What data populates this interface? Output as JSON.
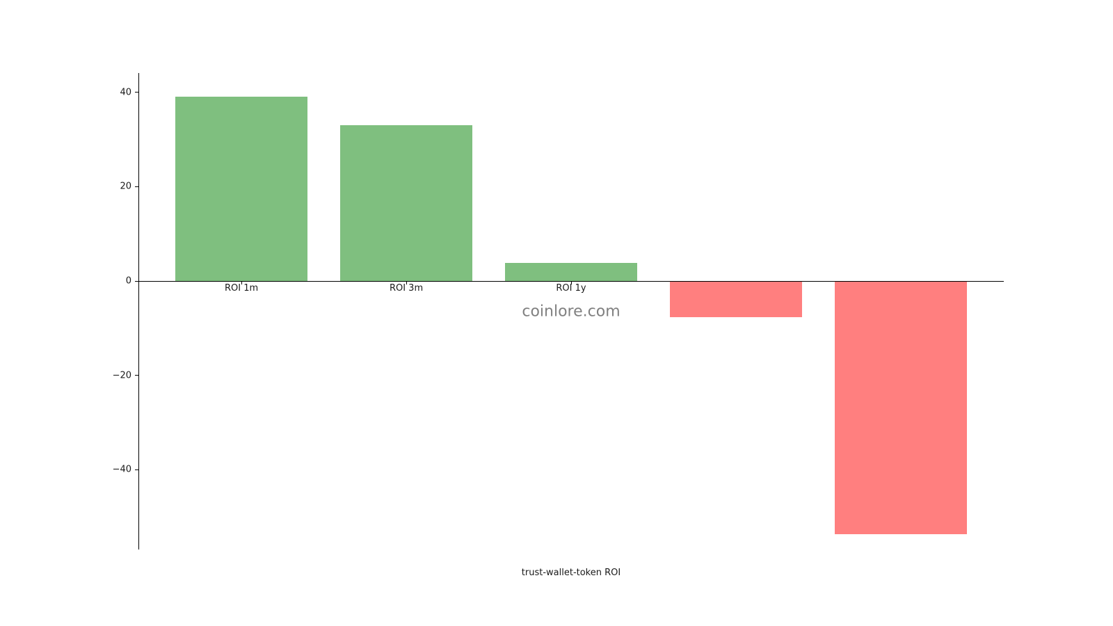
{
  "page": {
    "background_color": "#ffffff"
  },
  "chart_data": {
    "type": "bar",
    "title": "trust-wallet-token ROI",
    "title_position": "bottom-center",
    "categories": [
      "ROI 1m",
      "ROI 3m",
      "ROI 1y",
      "",
      ""
    ],
    "values": [
      39.1,
      33.1,
      3.9,
      -7.6,
      -53.7
    ],
    "bar_colors": [
      "#7fbf7f",
      "#7fbf7f",
      "#7fbf7f",
      "#ff7f7f",
      "#ff7f7f"
    ],
    "positive_color": "#7fbf7f",
    "negative_color": "#ff7f7f",
    "xlabel": "",
    "ylabel": "",
    "yticks": [
      40,
      20,
      0,
      -20,
      -40
    ],
    "ytick_labels": [
      "40",
      "20",
      "0",
      "−20",
      "−40"
    ],
    "ylim": [
      -56.9,
      44.1
    ],
    "grid": false,
    "legend": "none",
    "axis_color": "#000000",
    "watermark": "coinlore.com"
  }
}
